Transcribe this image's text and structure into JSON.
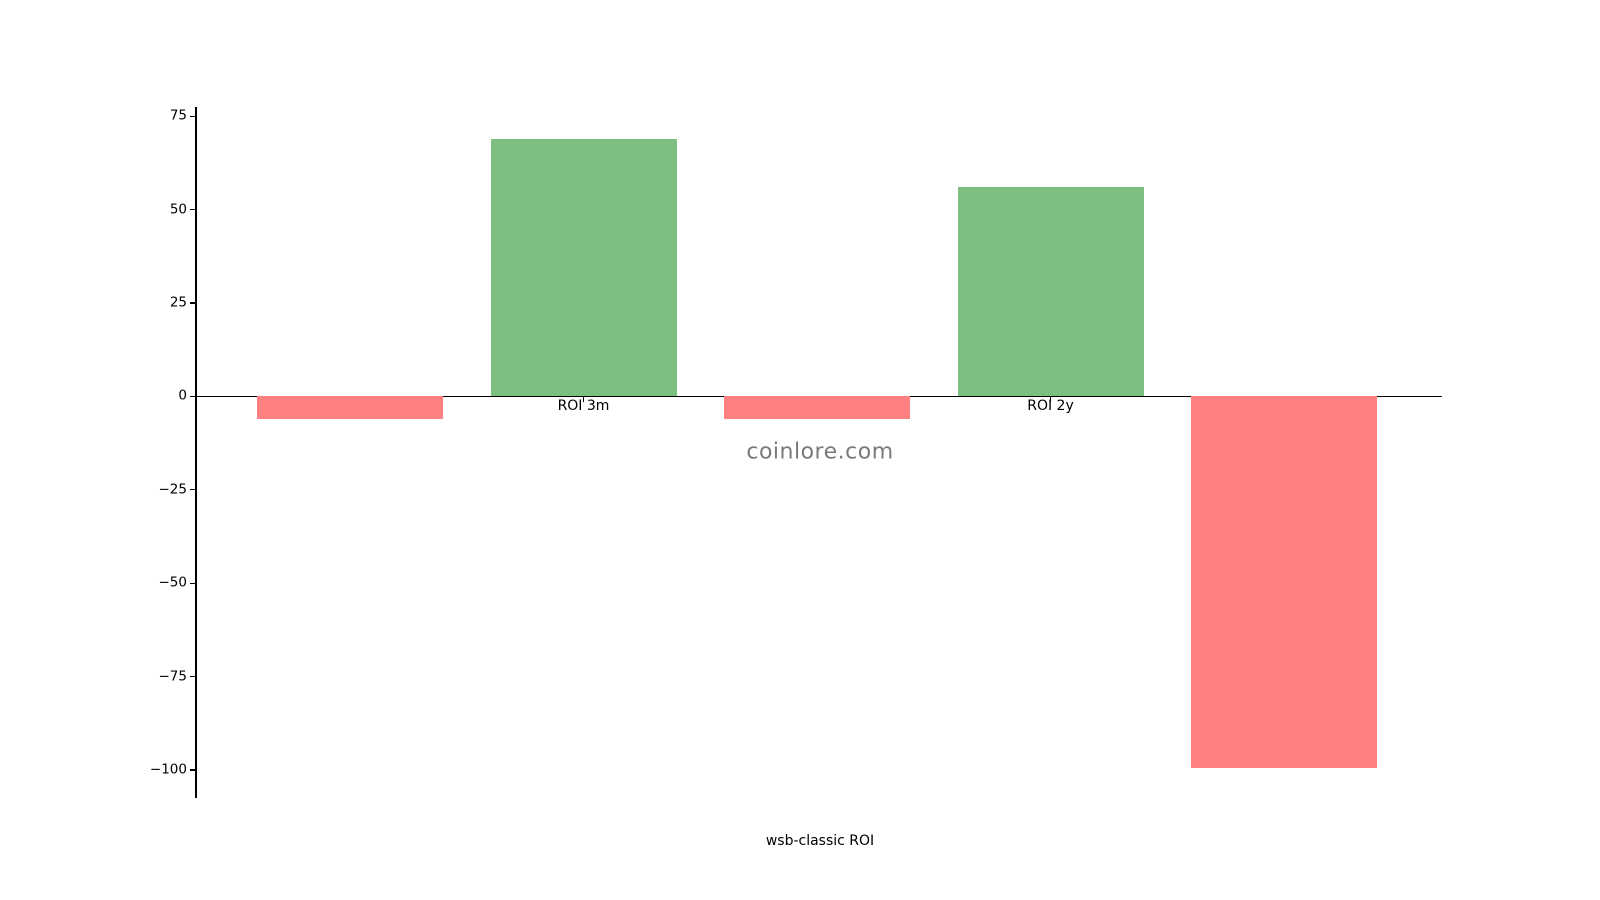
{
  "chart_data": {
    "type": "bar",
    "title": "",
    "xlabel": "wsb-classic ROI",
    "ylabel": "",
    "watermark": "coinlore.com",
    "categories": [
      "",
      "ROI 3m",
      "",
      "ROI 2y",
      ""
    ],
    "values": [
      -6,
      69,
      -6,
      56,
      -99.5
    ],
    "positive_color": "#7cbf80",
    "negative_color": "#ff8080",
    "axis_color": "#000000",
    "watermark_color": "#7a7a7a",
    "ylim": [
      -107.5,
      77.5
    ],
    "yticks": [
      75,
      50,
      25,
      0,
      -25,
      -50,
      -75,
      -100
    ],
    "grid": false,
    "legend": null
  }
}
